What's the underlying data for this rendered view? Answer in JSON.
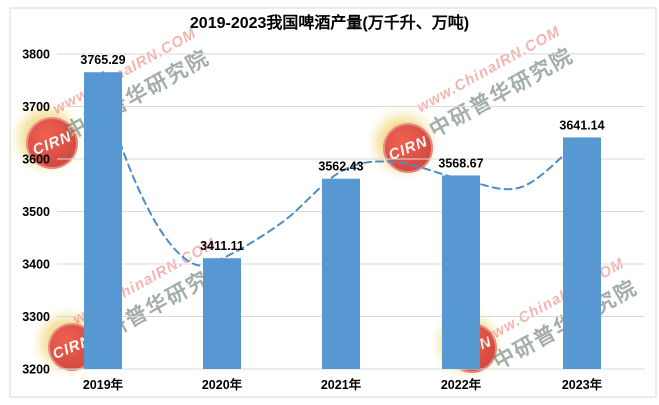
{
  "chart_data": {
    "type": "bar",
    "title": "2019-2023我国啤酒产量(万千升、万吨)",
    "categories": [
      "2019年",
      "2020年",
      "2021年",
      "2022年",
      "2023年"
    ],
    "values": [
      3765.29,
      3411.11,
      3562.43,
      3568.67,
      3641.14
    ],
    "value_labels": [
      "3765.29",
      "3411.11",
      "3562.43",
      "3568.67",
      "3641.14"
    ],
    "series": [
      {
        "name": "bar-series",
        "type": "bar",
        "values": [
          3765.29,
          3411.11,
          3562.43,
          3568.67,
          3641.14
        ]
      },
      {
        "name": "trend-series",
        "type": "smooth-dashed-line",
        "points": [
          [
            0,
            3765.3
          ],
          [
            0.16,
            3620
          ],
          [
            0.45,
            3475
          ],
          [
            0.74,
            3402
          ],
          [
            1,
            3411.1
          ],
          [
            1.5,
            3480
          ],
          [
            2,
            3578
          ],
          [
            2.45,
            3594
          ],
          [
            3,
            3561
          ],
          [
            3.5,
            3547
          ],
          [
            4,
            3641.1
          ]
        ]
      }
    ],
    "xlabel": "",
    "ylabel": "",
    "ylim": [
      3200,
      3800
    ],
    "yticks": [
      3200,
      3300,
      3400,
      3500,
      3600,
      3700,
      3800
    ],
    "grid": true,
    "legend_position": "none",
    "colors": {
      "bar": "#5898D2",
      "trend_line": "#4C8CC9",
      "grid": "#DADADA",
      "border": "#D9D9D9",
      "text": "#000000"
    }
  },
  "watermark": {
    "url_text": "www.ChinaIRN.COM",
    "brand_text": "中研普华研究院",
    "badge_text": "CIRN"
  }
}
